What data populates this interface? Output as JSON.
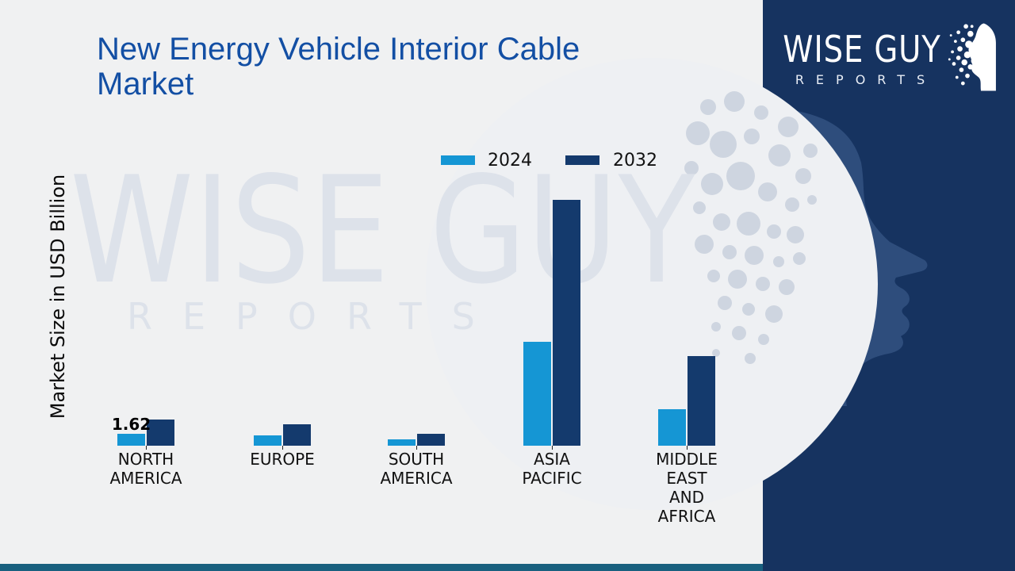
{
  "page": {
    "title": "New Energy Vehicle Interior Cable Market"
  },
  "branding": {
    "logo_title": "WISE GUY",
    "logo_subtitle": "REPORTS",
    "watermark_title": "WISE GUY",
    "watermark_subtitle": "REPORTS"
  },
  "chart_data": {
    "type": "bar",
    "title": "New Energy Vehicle Interior Cable Market",
    "ylabel": "Market Size in USD Billion",
    "xlabel": "",
    "unit": "USD Billion",
    "grid": false,
    "legend_position": "top",
    "ylim": [
      0,
      35
    ],
    "categories": [
      "NORTH AMERICA",
      "EUROPE",
      "SOUTH AMERICA",
      "ASIA PACIFIC",
      "MIDDLE EAST AND AFRICA"
    ],
    "category_lines": [
      [
        "NORTH",
        "AMERICA"
      ],
      [
        "EUROPE"
      ],
      [
        "SOUTH",
        "AMERICA"
      ],
      [
        "ASIA",
        "PACIFIC"
      ],
      [
        "MIDDLE",
        "EAST",
        "AND",
        "AFRICA"
      ]
    ],
    "series": [
      {
        "name": "2024",
        "color": "#1596d4",
        "values": [
          1.62,
          1.4,
          0.85,
          13.8,
          4.8
        ]
      },
      {
        "name": "2032",
        "color": "#143a6d",
        "values": [
          3.5,
          2.8,
          1.55,
          32.6,
          11.9
        ]
      }
    ],
    "data_labels": [
      {
        "series_index": 0,
        "category_index": 0,
        "text": "1.62"
      }
    ]
  },
  "colors": {
    "title": "#134fa4",
    "background": "#f0f1f2",
    "right_panel": "#163360",
    "face_profile": "#2e4d7c",
    "head_circle": "#eef0f3",
    "brain_dots": "#cbd3de",
    "bottom_bar": "#19607f",
    "series_2024": "#1596d4",
    "series_2032": "#143a6d",
    "watermark": "#dde2ea"
  }
}
